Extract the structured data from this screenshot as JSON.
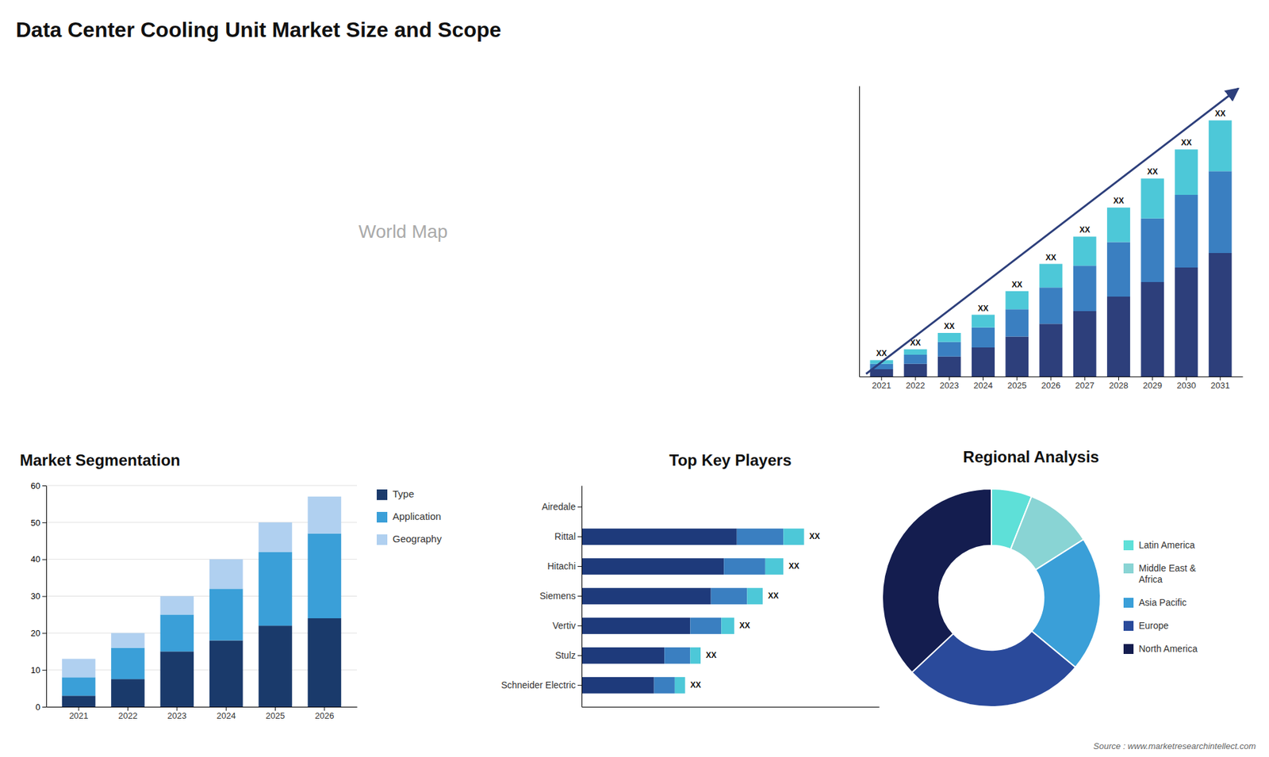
{
  "title": "Data Center Cooling Unit Market Size and Scope",
  "annotations": [
    "World Map",
    "Source : www.marketresearchintellect.com"
  ],
  "chart_data": [
    {
      "type": "bar",
      "stacked": true,
      "categories": [
        "2021",
        "2022",
        "2023",
        "2024",
        "2025",
        "2026",
        "2027",
        "2028",
        "2029",
        "2030",
        "2031"
      ],
      "series": [
        {
          "color": "#2d3f7b",
          "values": [
            2,
            3.5,
            5.5,
            8,
            11,
            14.5,
            18,
            22,
            26,
            30,
            34
          ]
        },
        {
          "color": "#3a7fc1",
          "values": [
            1.5,
            2.5,
            4,
            5.5,
            7.5,
            10,
            12.5,
            15,
            17.5,
            20,
            22.5
          ]
        },
        {
          "color": "#4dc8d8",
          "values": [
            1,
            1.5,
            2.5,
            3.5,
            5,
            6.5,
            8,
            9.5,
            11,
            12.5,
            14
          ]
        }
      ],
      "annotations": [
        "XX",
        "XX",
        "XX",
        "XX",
        "XX",
        "XX",
        "XX",
        "XX",
        "XX",
        "XX",
        "XX"
      ],
      "ylim": [
        0,
        80
      ],
      "tick_labels": "x"
    },
    {
      "type": "bar",
      "title": "Market Segmentation",
      "stacked": true,
      "categories": [
        "2021",
        "2022",
        "2023",
        "2024",
        "2025",
        "2026"
      ],
      "series": [
        {
          "name": "Type",
          "color": "#1a3a6b",
          "values": [
            3,
            7.5,
            15,
            18,
            22,
            24
          ]
        },
        {
          "name": "Application",
          "color": "#3a9fd8",
          "values": [
            5,
            8.5,
            10,
            14,
            20,
            23
          ]
        },
        {
          "name": "Geography",
          "color": "#b0d0f0",
          "values": [
            5,
            4,
            5,
            8,
            8,
            10
          ]
        }
      ],
      "ylim": [
        0,
        60
      ],
      "yticks": [
        0,
        10,
        20,
        30,
        40,
        50,
        60
      ],
      "grid": true,
      "legend": "right"
    },
    {
      "type": "bar",
      "title": "Top Key Players",
      "orientation": "horizontal",
      "stacked": true,
      "categories": [
        "Airedale",
        "Rittal",
        "Hitachi",
        "Siemens",
        "Vertiv",
        "Stulz",
        "Schneider Electric"
      ],
      "series": [
        {
          "color": "#1e3a7b",
          "values": [
            0,
            60,
            55,
            50,
            42,
            32,
            28
          ]
        },
        {
          "color": "#3a7fc1",
          "values": [
            0,
            18,
            16,
            14,
            12,
            10,
            8
          ]
        },
        {
          "color": "#4dc8d8",
          "values": [
            0,
            8,
            7,
            6,
            5,
            4,
            4
          ]
        }
      ],
      "annotations": [
        null,
        "XX",
        "XX",
        "XX",
        "XX",
        "XX",
        "XX"
      ],
      "xlim": [
        0,
        115
      ],
      "tick_labels": "y"
    },
    {
      "type": "donut",
      "title": "Regional Analysis",
      "categories": [
        "Latin America",
        "Middle East &\nAfrica",
        "Asia Pacific",
        "Europe",
        "North America"
      ],
      "values": [
        6,
        10,
        20,
        27,
        37
      ],
      "colors": [
        "#5ee0d8",
        "#89d4d4",
        "#3a9fd8",
        "#2a4a9b",
        "#141d4f"
      ],
      "legend": "right"
    }
  ]
}
